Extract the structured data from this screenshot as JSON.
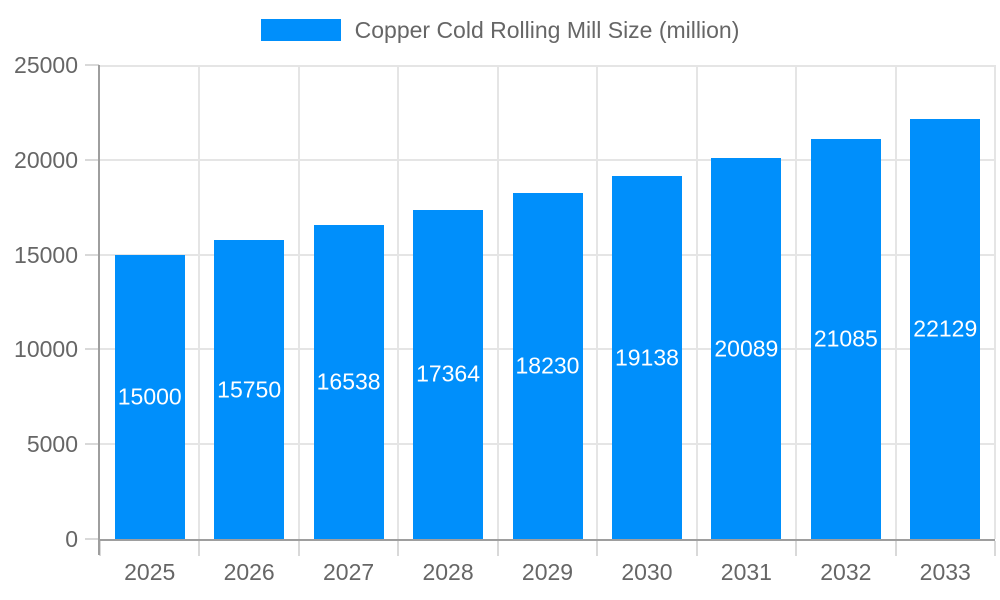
{
  "chart_data": {
    "type": "bar",
    "title": "Copper Cold Rolling Mill Size (million)",
    "categories": [
      "2025",
      "2026",
      "2027",
      "2028",
      "2029",
      "2030",
      "2031",
      "2032",
      "2033"
    ],
    "values": [
      15000,
      15750,
      16538,
      17364,
      18230,
      19138,
      20089,
      21085,
      22129
    ],
    "value_labels": [
      "15000",
      "15750",
      "16538",
      "17364",
      "18230",
      "19138",
      "20089",
      "21085",
      "22129"
    ],
    "xlabel": "",
    "ylabel": "",
    "ylim": [
      0,
      25000
    ],
    "yticks": [
      0,
      5000,
      10000,
      15000,
      20000,
      25000
    ],
    "ytick_labels": [
      "0",
      "5000",
      "10000",
      "15000",
      "20000",
      "25000"
    ],
    "grid": true,
    "legend_position": "top",
    "colors": {
      "bar": "#008ffb",
      "bar_value_text": "#ffffff",
      "axis_text": "#666666",
      "grid_line": "#e5e5e5",
      "axis_line": "#9e9e9e",
      "tick_mark": "#d9d9d9"
    }
  }
}
